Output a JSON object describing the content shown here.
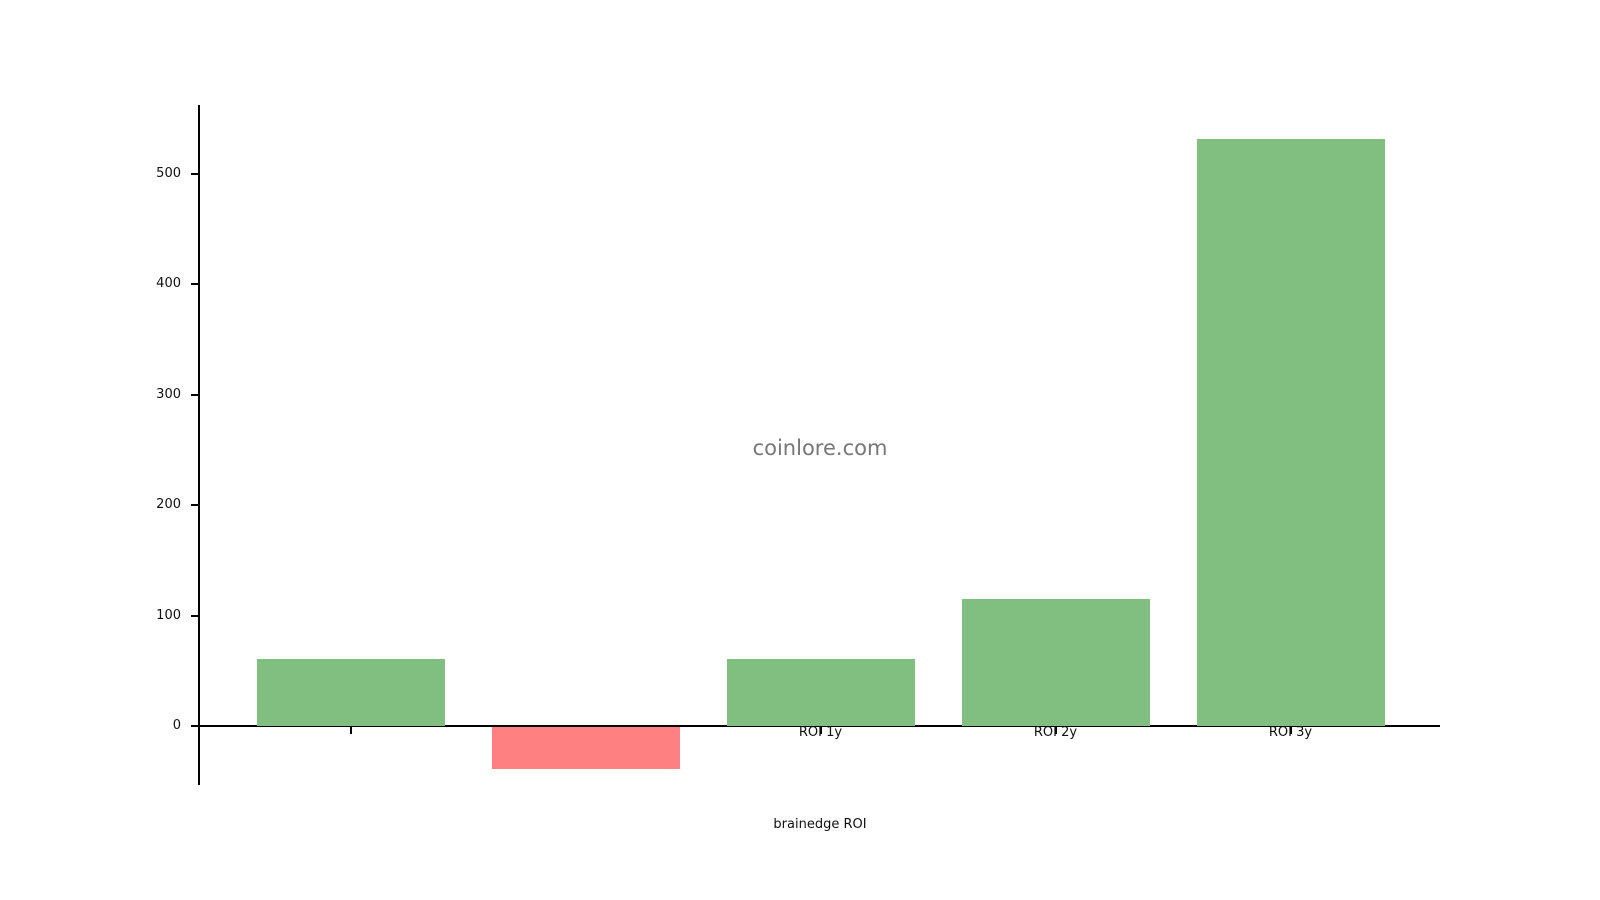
{
  "watermark": "coinlore.com",
  "chart_data": {
    "type": "bar",
    "title": "",
    "xlabel": "brainedge ROI",
    "ylabel": "",
    "categories": [
      "",
      "",
      "ROI 1y",
      "ROI 2y",
      "ROI 3y"
    ],
    "values": [
      61,
      -38,
      61,
      115,
      532
    ],
    "yticks": [
      0,
      100,
      200,
      300,
      400,
      500
    ],
    "ylim": [
      -53,
      562
    ],
    "grid": false,
    "legend": null,
    "positive_color": "#80bf80",
    "negative_color": "#ff8080",
    "axis_color": "#000000",
    "watermark": "coinlore.com"
  }
}
